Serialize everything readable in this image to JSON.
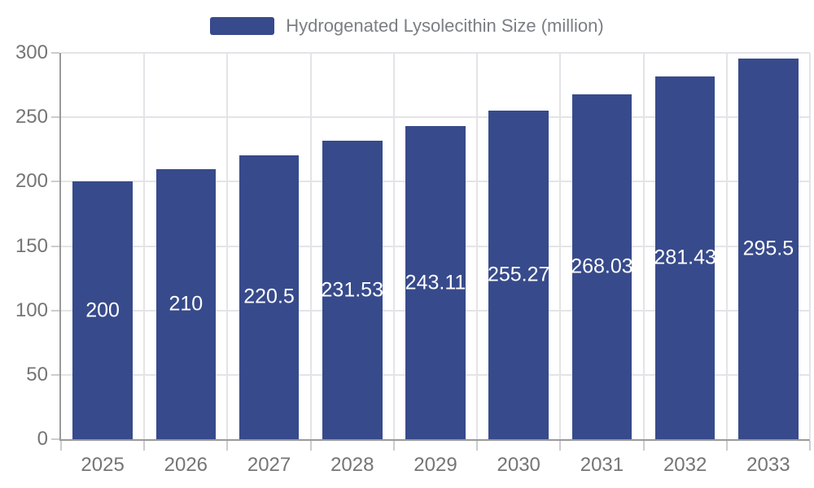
{
  "chart_data": {
    "type": "bar",
    "title": "",
    "categories": [
      "2025",
      "2026",
      "2027",
      "2028",
      "2029",
      "2030",
      "2031",
      "2032",
      "2033"
    ],
    "values": [
      200,
      210,
      220.5,
      231.53,
      243.11,
      255.27,
      268.03,
      281.43,
      295.5
    ],
    "value_labels": [
      "200",
      "210",
      "220.5",
      "231.53",
      "243.11",
      "255.27",
      "268.03",
      "281.43",
      "295.5"
    ],
    "xlabel": "",
    "ylabel": "",
    "ylim": [
      0,
      300
    ],
    "yticks": [
      0,
      50,
      100,
      150,
      200,
      250,
      300
    ],
    "grid": true,
    "legend": {
      "position": "top",
      "items": [
        {
          "label": "Hydrogenated Lysolecithin Size (million)",
          "color": "#374a8b"
        }
      ]
    },
    "colors": {
      "bar": "#374a8b",
      "value_label": "#ffffff",
      "axis_line": "#999999",
      "gridline": "#e4e4e8",
      "tick": "#cccccc",
      "axis_text": "#757575",
      "legend_text": "#7b7e83",
      "background": "#ffffff"
    }
  }
}
